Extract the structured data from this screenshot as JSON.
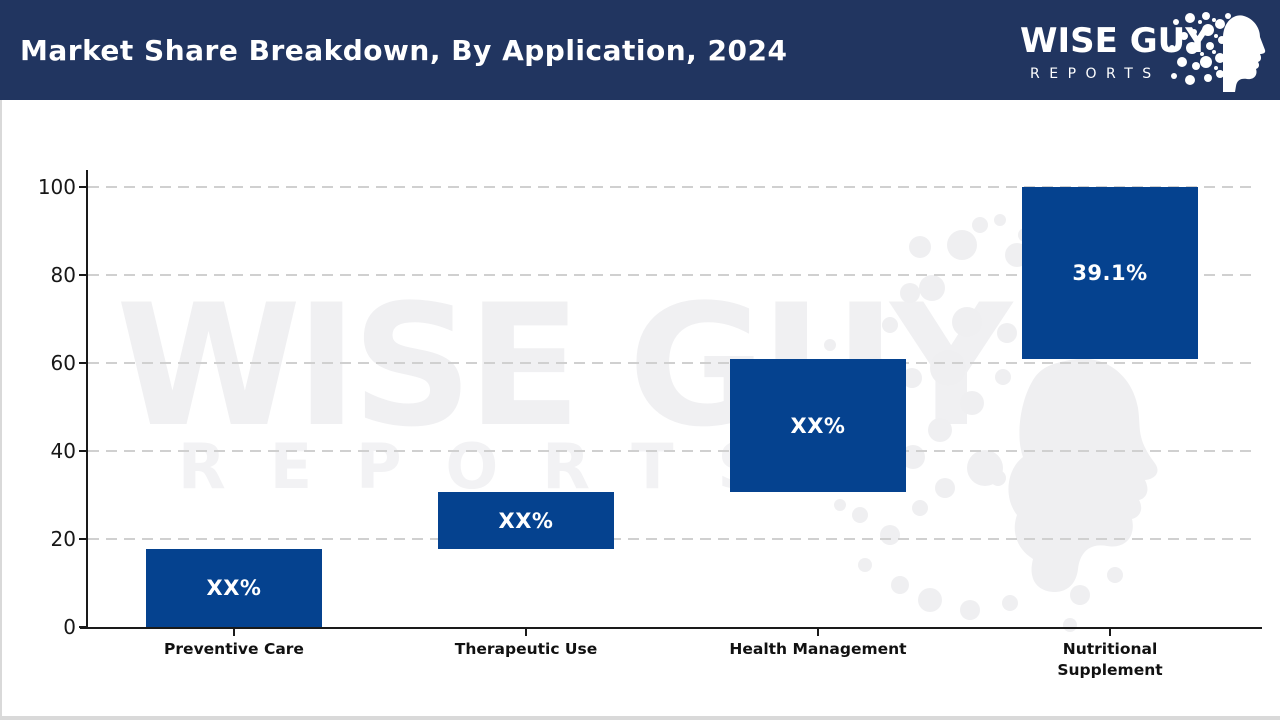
{
  "header": {
    "title": "Market Share Breakdown, By Application, 2024",
    "logo": {
      "wordmark": "WISE GUY",
      "subtext": "REPORTS"
    }
  },
  "watermark": {
    "line1": "WISE GUY",
    "line2": "REPORTS"
  },
  "colors": {
    "header_bg": "#213560",
    "bar": "#05428f",
    "grid": "#d0d0d0",
    "axis": "#1a1a1a",
    "bar_label": "#ffffff",
    "watermark": "#f0f0f2"
  },
  "chart_data": {
    "type": "bar",
    "subtype": "floating-waterfall",
    "title": "Market Share Breakdown, By Application, 2024",
    "categories": [
      "Preventive Care",
      "Therapeutic Use",
      "Health Management",
      "Nutritional Supplement"
    ],
    "bars": [
      {
        "category": "Preventive Care",
        "start": 0,
        "end": 17.7,
        "value_label": "XX%",
        "label_lines": [
          "Preventive Care"
        ]
      },
      {
        "category": "Therapeutic Use",
        "start": 17.7,
        "end": 30.6,
        "value_label": "XX%",
        "label_lines": [
          "Therapeutic Use"
        ]
      },
      {
        "category": "Health Management",
        "start": 30.6,
        "end": 60.9,
        "value_label": "XX%",
        "label_lines": [
          "Health Management"
        ]
      },
      {
        "category": "Nutritional Supplement",
        "start": 60.9,
        "end": 100,
        "value_label": "39.1%",
        "label_lines": [
          "Nutritional",
          "Supplement"
        ]
      }
    ],
    "yticks": [
      0,
      20,
      40,
      60,
      80,
      100
    ],
    "ylim": [
      0,
      104
    ],
    "xlabel": "",
    "ylabel": "",
    "grid": "horizontal-dashed",
    "legend": "none"
  }
}
